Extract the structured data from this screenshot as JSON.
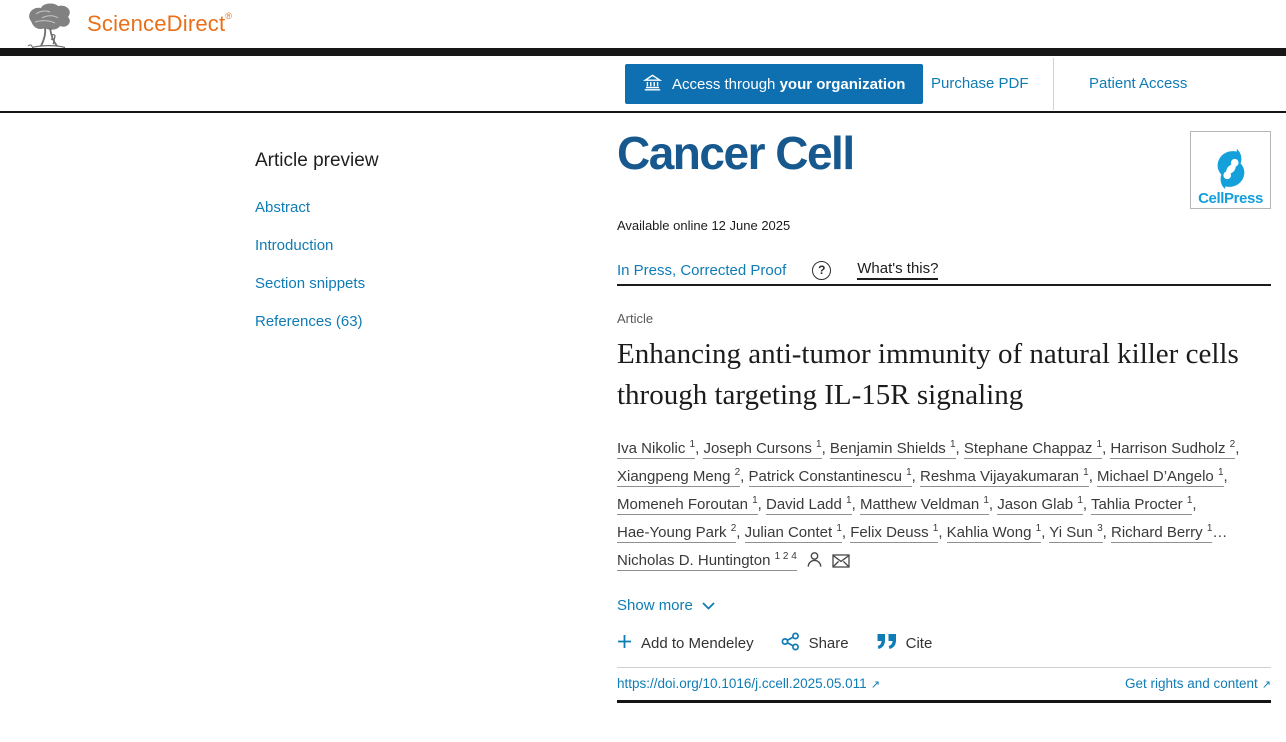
{
  "topbar": {
    "brand": "ScienceDirect",
    "reg": "®"
  },
  "header": {
    "access_prefix": "Access through",
    "access_bold": "your organization",
    "purchase_pdf": "Purchase PDF",
    "patient_access": "Patient Access"
  },
  "sidebar": {
    "title": "Article preview",
    "items": [
      {
        "label": "Abstract"
      },
      {
        "label": "Introduction"
      },
      {
        "label": "Section snippets"
      },
      {
        "label": "References (63)"
      }
    ]
  },
  "main": {
    "journal": "Cancer Cell",
    "cellpress": "CellPress",
    "available": "Available online 12 June 2025",
    "status": "In Press, Corrected Proof",
    "help_glyph": "?",
    "whats_this": "What's this?",
    "article_label": "Article",
    "title": "Enhancing anti-tumor immunity of natural killer cells through targeting IL-15R signaling",
    "authors": [
      {
        "name": "Iva Nikolic",
        "sup": "1"
      },
      {
        "name": "Joseph Cursons",
        "sup": "1"
      },
      {
        "name": "Benjamin Shields",
        "sup": "1"
      },
      {
        "name": "Stephane Chappaz",
        "sup": "1"
      },
      {
        "name": "Harrison Sudholz",
        "sup": "2"
      },
      {
        "name": "Xiangpeng Meng",
        "sup": "2"
      },
      {
        "name": "Patrick Constantinescu",
        "sup": "1"
      },
      {
        "name": "Reshma Vijayakumaran",
        "sup": "1"
      },
      {
        "name": "Michael D’Angelo",
        "sup": "1"
      },
      {
        "name": "Momeneh Foroutan",
        "sup": "1"
      },
      {
        "name": "David Ladd",
        "sup": "1"
      },
      {
        "name": "Matthew Veldman",
        "sup": "1"
      },
      {
        "name": "Jason Glab",
        "sup": "1"
      },
      {
        "name": "Tahlia Procter",
        "sup": "1"
      },
      {
        "name": "Hae-Young Park",
        "sup": "2"
      },
      {
        "name": "Julian Contet",
        "sup": "1"
      },
      {
        "name": "Felix Deuss",
        "sup": "1"
      },
      {
        "name": "Kahlia Wong",
        "sup": "1"
      },
      {
        "name": "Yi Sun",
        "sup": "3"
      },
      {
        "name": "Richard Berry",
        "sup": "1",
        "trail": "…"
      },
      {
        "name": "Nicholas D. Huntington",
        "sup": "1 2 4",
        "last": true,
        "icons": [
          "person-icon",
          "email-icon"
        ]
      }
    ],
    "show_more": "Show more",
    "actions": {
      "mendeley": "Add to Mendeley",
      "share": "Share",
      "cite": "Cite"
    },
    "doi": "https://doi.org/10.1016/j.ccell.2025.05.011",
    "rights": "Get rights and content"
  },
  "colors": {
    "brand_orange": "#e8701a",
    "link_blue": "#0f7cb5",
    "button_blue": "#0e6fb1",
    "journal_navy": "#17598f",
    "cellpress_blue": "#14a0da",
    "bar_black": "#161616"
  }
}
